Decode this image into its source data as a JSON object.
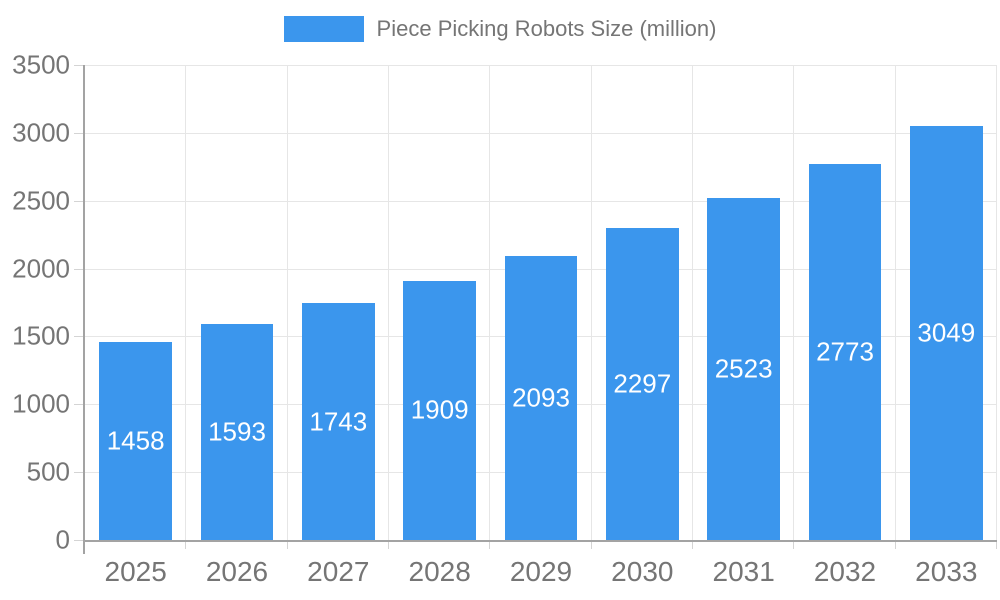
{
  "legend": {
    "label": "Piece Picking Robots Size (million)"
  },
  "colors": {
    "bar": "#3b96ed",
    "bar_label": "#ffffff",
    "text": "#757575",
    "grid": "#e6e6e6",
    "axis": "#a3a3a3",
    "tick": "#d4d4d4",
    "background": "#ffffff"
  },
  "chart_data": {
    "type": "bar",
    "title": "Piece Picking Robots Size (million)",
    "categories": [
      "2025",
      "2026",
      "2027",
      "2028",
      "2029",
      "2030",
      "2031",
      "2032",
      "2033"
    ],
    "series": [
      {
        "name": "Piece Picking Robots Size (million)",
        "values": [
          1458,
          1593,
          1743,
          1909,
          2093,
          2297,
          2523,
          2773,
          3049
        ]
      }
    ],
    "xlabel": "",
    "ylabel": "",
    "ylim": [
      0,
      3500
    ],
    "yticks": [
      0,
      500,
      1000,
      1500,
      2000,
      2500,
      3000,
      3500
    ],
    "grid": true,
    "legend_position": "top",
    "value_labels": "inside-center-white"
  }
}
